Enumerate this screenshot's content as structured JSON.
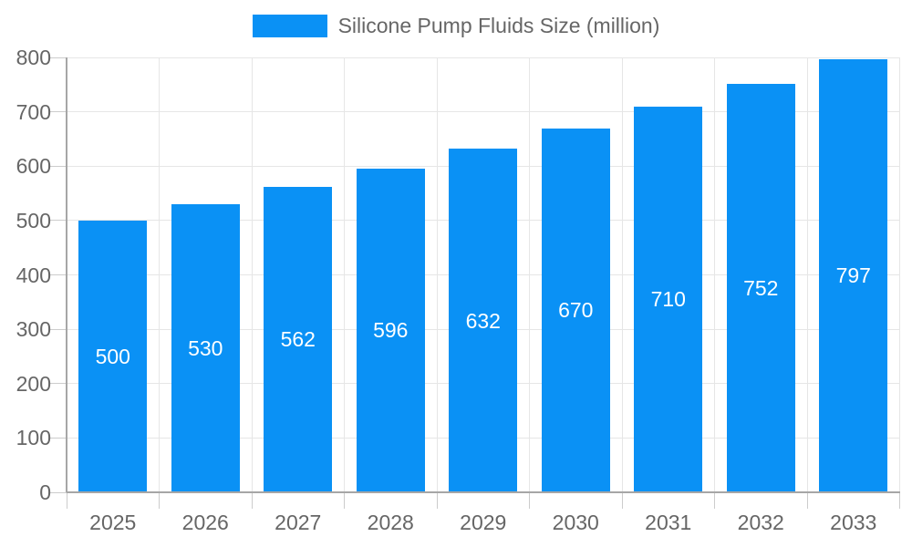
{
  "legend": {
    "label": "Silicone Pump Fluids Size (million)",
    "swatch_color": "#0a91f5"
  },
  "chart_data": {
    "type": "bar",
    "title": "",
    "categories": [
      "2025",
      "2026",
      "2027",
      "2028",
      "2029",
      "2030",
      "2031",
      "2032",
      "2033"
    ],
    "series": [
      {
        "name": "Silicone Pump Fluids Size (million)",
        "values": [
          500,
          530,
          562,
          596,
          632,
          670,
          710,
          752,
          797
        ]
      }
    ],
    "xlabel": "",
    "ylabel": "",
    "ylim": [
      0,
      800
    ],
    "yticks": [
      0,
      100,
      200,
      300,
      400,
      500,
      600,
      700,
      800
    ],
    "grid": true,
    "legend_position": "top-center",
    "value_labels": "inside-bar-center",
    "colors": {
      "bar": "#0a91f5",
      "value_label": "#ffffff",
      "axis_text": "#666666",
      "axis_line": "#a6a6a6",
      "tick": "#cccccc",
      "gridline": "#e6e6e6",
      "background": "#ffffff"
    }
  }
}
